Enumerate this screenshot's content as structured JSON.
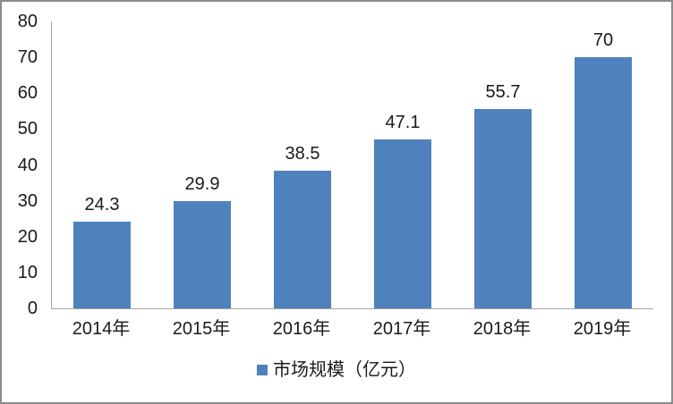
{
  "chart_data": {
    "type": "bar",
    "title": "",
    "categories": [
      "2014年",
      "2015年",
      "2016年",
      "2017年",
      "2018年",
      "2019年"
    ],
    "values": [
      24.3,
      29.9,
      38.5,
      47.1,
      55.7,
      70
    ],
    "data_labels": [
      "24.3",
      "29.9",
      "38.5",
      "47.1",
      "55.7",
      "70"
    ],
    "series_name": "市场规模（亿元）",
    "xlabel": "",
    "ylabel": "",
    "ylim": [
      0,
      80
    ],
    "y_ticks": [
      0,
      10,
      20,
      30,
      40,
      50,
      60,
      70,
      80
    ],
    "grid": false,
    "legend_position": "bottom",
    "colors": {
      "bar": "#4F81BD",
      "axis_line": "#a6a6a6",
      "frame_border": "#8c8c8c",
      "text": "#1a1a1a"
    }
  },
  "legend": {
    "label": "市场规模（亿元）"
  }
}
